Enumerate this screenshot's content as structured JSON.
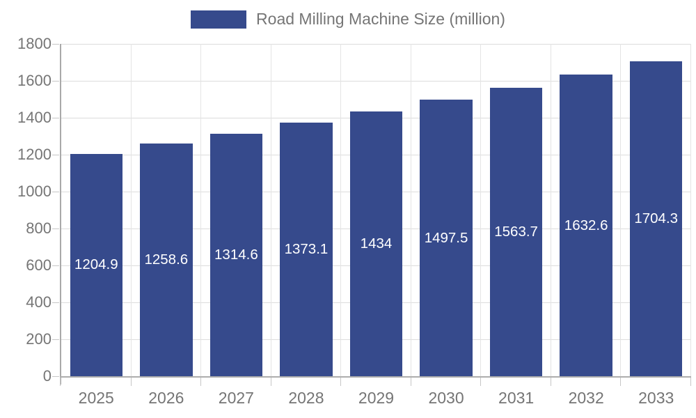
{
  "chart_data": {
    "type": "bar",
    "title": "Road Milling Machine Size (million)",
    "legend": {
      "label": "Road Milling Machine Size (million)",
      "position": "top-center"
    },
    "categories": [
      "2025",
      "2026",
      "2027",
      "2028",
      "2029",
      "2030",
      "2031",
      "2032",
      "2033"
    ],
    "series": [
      {
        "name": "Road Milling Machine Size (million)",
        "values": [
          1204.9,
          1258.6,
          1314.6,
          1373.1,
          1434,
          1497.5,
          1563.7,
          1632.6,
          1704.3
        ]
      }
    ],
    "xlabel": "",
    "ylabel": "",
    "ylim": [
      0,
      1800
    ],
    "yticks": [
      0,
      200,
      400,
      600,
      800,
      1000,
      1200,
      1400,
      1600,
      1800
    ],
    "grid": true,
    "value_labels": "inside-center",
    "colors": {
      "bar": "#364a8c",
      "text": "#757575",
      "bar_label_text": "#ffffff",
      "hgrid": "#dcdcdc",
      "vgrid": "#e4e4e4",
      "axis": "#a9a9a9",
      "tick": "#c6c6c6",
      "background": "#ffffff"
    }
  }
}
